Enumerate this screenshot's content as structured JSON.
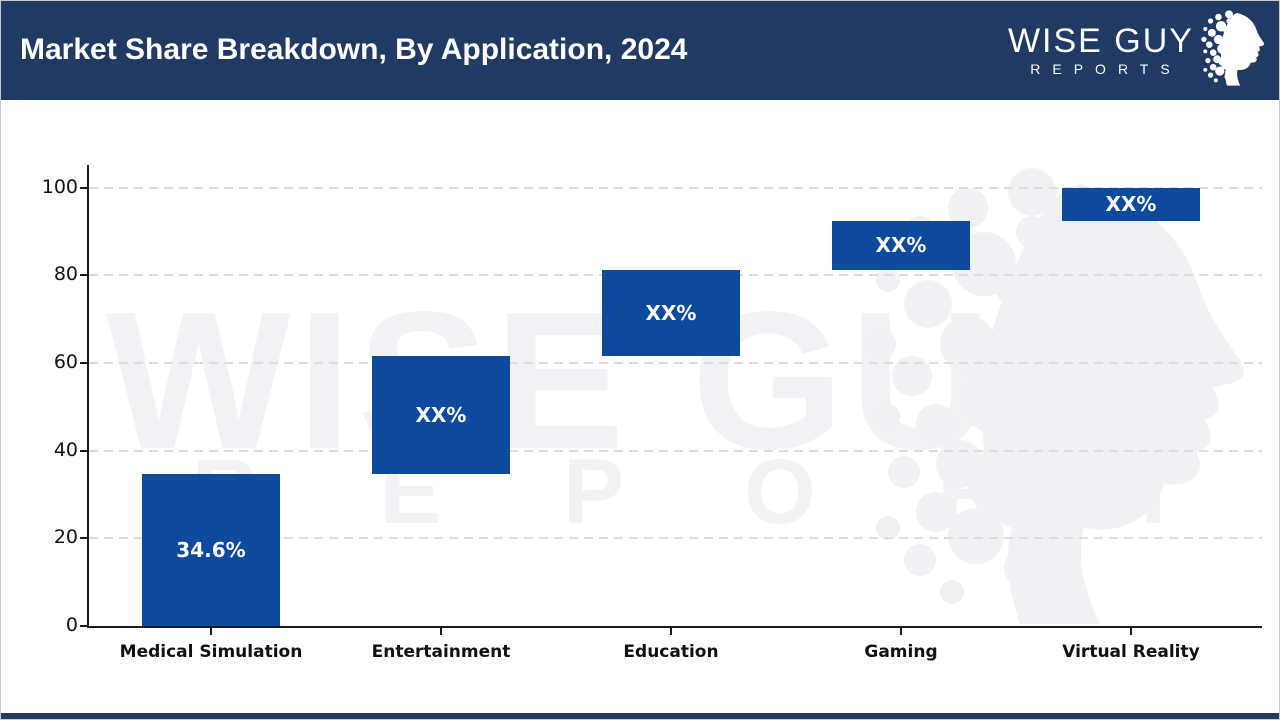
{
  "header": {
    "title": "Market Share Breakdown, By Application, 2024",
    "background_color": "#213A64",
    "text_color": "#FFFFFF",
    "logo": {
      "line1": "WISE GUY",
      "line2": "REPORTS"
    }
  },
  "watermark": {
    "line1": "WISE GUY",
    "line2": "R E P O R T S"
  },
  "chart_data": {
    "type": "bar",
    "subtype": "waterfall",
    "title": "Market Share Breakdown, By Application, 2024",
    "categories": [
      "Medical Simulation",
      "Entertainment",
      "Education",
      "Gaming",
      "Virtual Reality"
    ],
    "segments": [
      {
        "category": "Medical Simulation",
        "start": 0,
        "end": 34.6,
        "label": "34.6%"
      },
      {
        "category": "Entertainment",
        "start": 34.6,
        "end": 61.5,
        "label": "XX%"
      },
      {
        "category": "Education",
        "start": 61.5,
        "end": 81.2,
        "label": "XX%"
      },
      {
        "category": "Gaming",
        "start": 81.2,
        "end": 92.4,
        "label": "XX%"
      },
      {
        "category": "Virtual Reality",
        "start": 92.4,
        "end": 100,
        "label": "XX%"
      }
    ],
    "values_estimated_for_xx_bars": true,
    "xlabel": "",
    "ylabel": "",
    "ylim": [
      0,
      105
    ],
    "yticks": [
      0,
      20,
      40,
      60,
      80,
      100
    ],
    "grid": "horizontal dashed",
    "legend": "none",
    "bar_color": "#0D4A9E",
    "bar_label_color": "#FFFFFF",
    "axis_color": "#1A1A1A",
    "gridline_color": "#DCDCDC"
  }
}
